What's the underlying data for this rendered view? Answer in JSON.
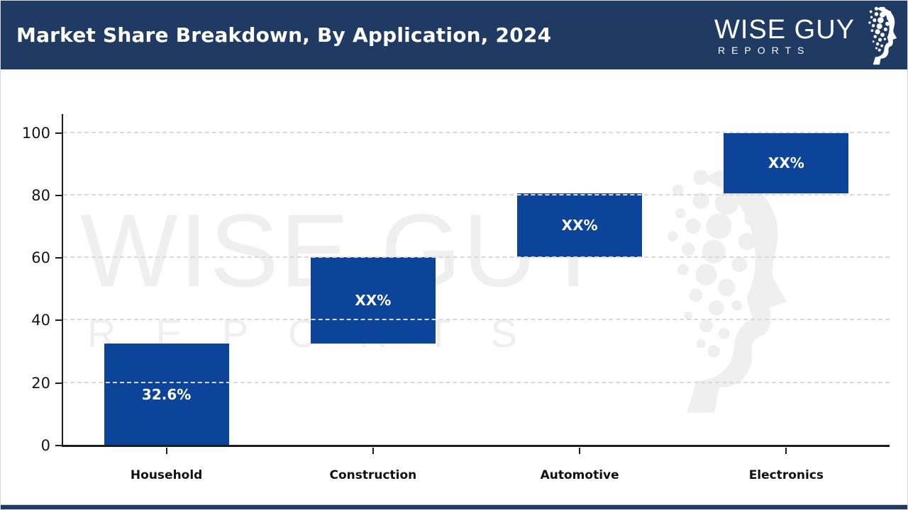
{
  "header": {
    "title": "Market Share Breakdown, By Application, 2024",
    "bg_color": "#1f3a63",
    "text_color": "#ffffff",
    "logo": {
      "line1": "WISE GUY",
      "line2": "REPORTS"
    }
  },
  "watermark": {
    "line1": "WISE GUY",
    "line2": "REPORTS",
    "color": "#efefef"
  },
  "chart_data": {
    "type": "bar",
    "subtype": "waterfall",
    "title": "Market Share Breakdown, By Application, 2024",
    "categories": [
      "Household",
      "Construction",
      "Automotive",
      "Electronics"
    ],
    "segments": [
      {
        "category": "Household",
        "start": 0,
        "end": 32.6,
        "label": "32.6%"
      },
      {
        "category": "Construction",
        "start": 32.6,
        "end": 60.3,
        "label": "XX%"
      },
      {
        "category": "Automotive",
        "start": 60.3,
        "end": 80.7,
        "label": "XX%"
      },
      {
        "category": "Electronics",
        "start": 80.7,
        "end": 100,
        "label": "XX%"
      }
    ],
    "xlabel": "",
    "ylabel": "",
    "ylim": [
      0,
      106
    ],
    "yticks": [
      0,
      20,
      40,
      60,
      80,
      100
    ],
    "grid": "horizontal-dashed",
    "legend": "none",
    "bar_color": "#0b4499",
    "bar_label_color": "#ffffff",
    "axis_color": "#1d1d1d",
    "grid_color": "#d9d9d9",
    "tick_label_color": "#151515"
  },
  "footer": {
    "bar_color": "#1f3a63"
  }
}
